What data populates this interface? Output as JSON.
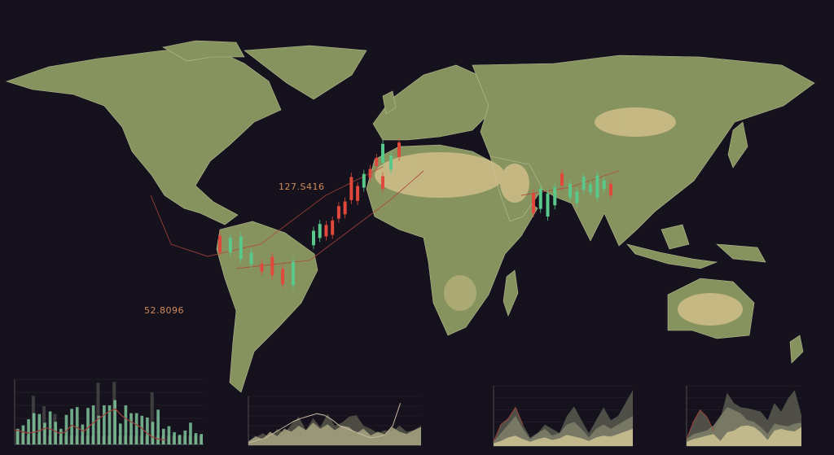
{
  "map": {
    "readouts": [
      "127.S416",
      "52.8096"
    ],
    "colors": {
      "background": "#15111d",
      "land": "#86935f",
      "desert": "#d9c48e",
      "candle_up": "#58c98a",
      "candle_down": "#e0483c",
      "trend_line": "#b0453a"
    }
  },
  "chart_data": [
    {
      "type": "bar",
      "values": [
        1.8,
        2.2,
        2.9,
        3.6,
        3.5,
        2.5,
        3.8,
        2.6,
        1.8,
        3.4,
        4.1,
        4.3,
        2.3,
        4.2,
        4.5,
        3.3,
        4.5,
        4.5,
        5.1,
        2.4,
        4.5,
        3.6,
        3.6,
        3.3,
        3.1,
        2.6,
        4.0,
        1.8,
        2.1,
        1.4,
        1.1,
        1.6,
        2.5,
        1.3,
        1.2
      ],
      "background_values": [
        1.5,
        1.3,
        1.0,
        5.6,
        1.2,
        4.4,
        1.0,
        3.5,
        1.0,
        1.0,
        1.0,
        1.0,
        1.0,
        1.0,
        1.0,
        7.1,
        1.0,
        1.0,
        7.2,
        1.0,
        1.0,
        1.0,
        1.0,
        1.0,
        1.0,
        6.0,
        1.0,
        1.0,
        1.0,
        1.0,
        1.0,
        1.0,
        1.0,
        1.0,
        1.0
      ],
      "line": [
        1.7,
        1.5,
        1.3,
        1.4,
        1.6,
        1.9,
        1.7,
        1.3,
        1.4,
        2.2,
        1.9,
        1.5,
        2.2,
        2.8,
        3.3,
        3.8,
        4.1,
        3.3,
        2.8,
        2.4,
        2.0,
        1.3,
        0.8,
        0.6,
        0.5
      ],
      "ylim": [
        0,
        7.5
      ],
      "grid": true
    },
    {
      "type": "area",
      "series": [
        {
          "values": [
            0.5,
            1.2,
            0.8,
            1.8,
            1.2,
            2.2,
            1.8,
            2.6,
            2.0,
            3.0,
            2.2,
            2.8,
            2.0,
            2.6,
            2.4,
            1.6,
            2.2,
            1.3,
            1.8,
            1.4,
            2.4,
            1.8,
            1.5,
            2.0,
            2.4
          ]
        },
        {
          "values": [
            0.4,
            1.0,
            1.6,
            1.0,
            2.2,
            1.6,
            2.8,
            3.8,
            2.0,
            3.6,
            2.4,
            4.2,
            2.6,
            3.0,
            3.8,
            4.0,
            2.6,
            2.2,
            1.6,
            2.0,
            1.8,
            2.6,
            1.8,
            2.0,
            2.6
          ]
        }
      ],
      "line": [
        0.3,
        0.6,
        0.9,
        1.4,
        2.0,
        2.6,
        3.2,
        3.6,
        3.9,
        4.2,
        4.0,
        3.4,
        2.6,
        2.2,
        1.8,
        1.4,
        1.0,
        1.1,
        1.4,
        2.6,
        5.6
      ],
      "ylim": [
        0,
        6.5
      ]
    },
    {
      "type": "area",
      "series": [
        {
          "values": [
            0.5,
            2.5,
            3.2,
            4.5,
            2.5,
            1.0,
            1.5,
            2.5,
            2.0,
            1.5,
            3.5,
            4.6,
            3.0,
            1.5,
            3.0,
            4.5,
            3.0,
            3.5,
            5.0,
            6.5
          ]
        },
        {
          "values": [
            0.5,
            1.5,
            2.5,
            3.5,
            2.0,
            0.8,
            1.5,
            2.0,
            1.2,
            1.5,
            2.5,
            2.8,
            2.0,
            1.0,
            2.0,
            2.5,
            2.0,
            2.5,
            3.0,
            3.5
          ]
        },
        {
          "values": [
            0.3,
            0.6,
            1.0,
            1.2,
            0.8,
            0.5,
            0.8,
            1.0,
            0.7,
            0.9,
            1.3,
            1.1,
            0.9,
            0.6,
            1.0,
            1.2,
            1.1,
            1.4,
            1.7,
            2.0
          ]
        }
      ],
      "ylim": [
        0,
        7
      ]
    },
    {
      "type": "area",
      "series": [
        {
          "values": [
            0.8,
            2.8,
            4.2,
            3.4,
            1.8,
            3.2,
            6.2,
            5.0,
            4.5,
            4.4,
            4.2,
            4.0,
            3.0,
            5.0,
            4.0,
            5.5,
            6.5,
            3.6
          ]
        },
        {
          "values": [
            0.8,
            1.4,
            1.6,
            1.8,
            2.4,
            3.5,
            4.5,
            4.2,
            3.8,
            3.0,
            2.8,
            2.2,
            1.4,
            2.6,
            2.4,
            2.3,
            2.6,
            2.7
          ]
        },
        {
          "values": [
            0.5,
            0.8,
            1.0,
            1.2,
            1.4,
            0.6,
            1.6,
            1.8,
            2.3,
            2.4,
            2.2,
            1.6,
            0.7,
            1.8,
            2.0,
            1.8,
            1.7,
            2.2
          ]
        }
      ],
      "ylim": [
        0,
        7
      ]
    }
  ]
}
